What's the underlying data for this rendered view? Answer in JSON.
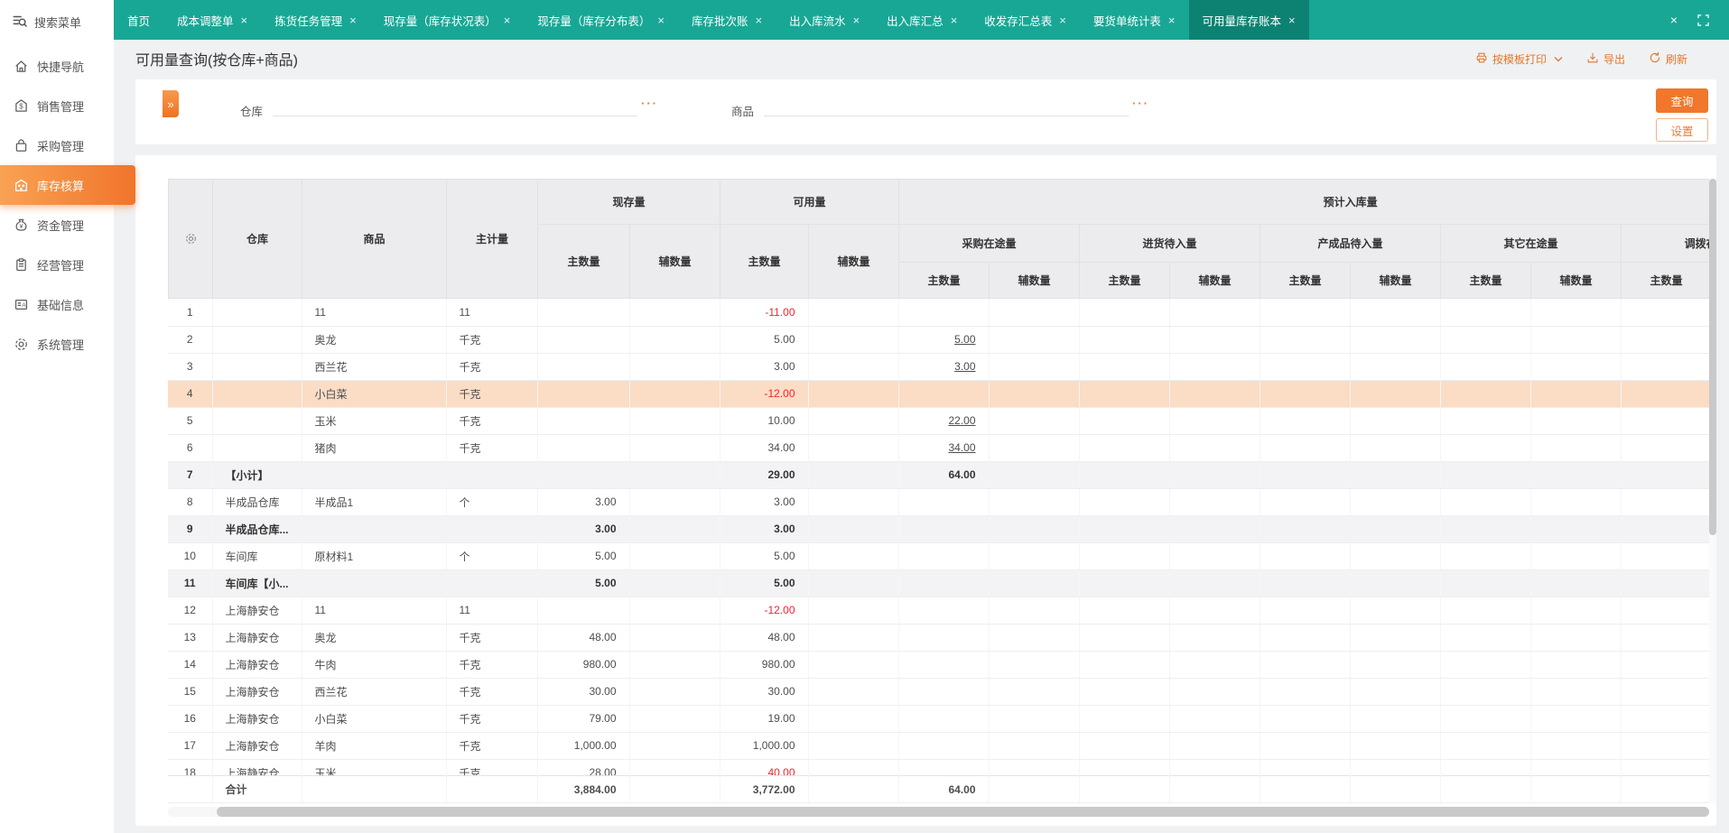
{
  "tabs": {
    "items": [
      {
        "label": "首页",
        "closable": false,
        "active": false
      },
      {
        "label": "成本调整单",
        "closable": true,
        "active": false
      },
      {
        "label": "拣货任务管理",
        "closable": true,
        "active": false
      },
      {
        "label": "现存量（库存状况表）",
        "closable": true,
        "active": false
      },
      {
        "label": "现存量（库存分布表）",
        "closable": true,
        "active": false
      },
      {
        "label": "库存批次账",
        "closable": true,
        "active": false
      },
      {
        "label": "出入库流水",
        "closable": true,
        "active": false
      },
      {
        "label": "出入库汇总",
        "closable": true,
        "active": false
      },
      {
        "label": "收发存汇总表",
        "closable": true,
        "active": false
      },
      {
        "label": "要货单统计表",
        "closable": true,
        "active": false
      },
      {
        "label": "可用量库存账本",
        "closable": true,
        "active": true
      }
    ],
    "close_all_icon": "×",
    "fullscreen_icon": "expand-icon"
  },
  "sidebar": {
    "search": {
      "label": "搜索菜单",
      "icon": "search-menu-icon"
    },
    "items": [
      {
        "label": "快捷导航",
        "icon": "home-icon",
        "active": false
      },
      {
        "label": "销售管理",
        "icon": "sales-house-icon",
        "active": false
      },
      {
        "label": "采购管理",
        "icon": "purchase-bag-icon",
        "active": false
      },
      {
        "label": "库存核算",
        "icon": "warehouse-icon",
        "active": true
      },
      {
        "label": "资金管理",
        "icon": "money-bag-icon",
        "active": false
      },
      {
        "label": "经营管理",
        "icon": "clipboard-icon",
        "active": false
      },
      {
        "label": "基础信息",
        "icon": "id-card-icon",
        "active": false
      },
      {
        "label": "系统管理",
        "icon": "gear-ring-icon",
        "active": false
      }
    ]
  },
  "page": {
    "title": "可用量查询(按仓库+商品)",
    "toolbar": {
      "print": {
        "label": "按模板打印",
        "icon": "printer-icon",
        "dropdown_icon": "chevron-down-icon"
      },
      "export": {
        "label": "导出",
        "icon": "export-icon"
      },
      "refresh": {
        "label": "刷新",
        "icon": "refresh-icon"
      }
    },
    "accent_color": "#f0772b",
    "theme_color": "#18a795"
  },
  "filters": {
    "warehouse_label": "仓库",
    "warehouse_value": "",
    "product_label": "商品",
    "product_value": "",
    "picker_ellipsis": "···",
    "query_button": "查询",
    "settings_button": "设置",
    "collapse_glyph": "»"
  },
  "table": {
    "header": {
      "settings_icon": "gear-icon",
      "col_warehouse": "仓库",
      "col_product": "商品",
      "col_unit": "主计量",
      "group_onhand": "现存量",
      "group_available": "可用量",
      "group_expected": "预计入库量",
      "sub_purchase": "采购在途量",
      "sub_incoming": "进货待入量",
      "sub_finished": "产成品待入量",
      "sub_other": "其它在途量",
      "sub_transfer": "调拨在途量",
      "leaf_main": "主数量",
      "leaf_aux": "辅数量"
    },
    "rows": [
      {
        "num": "1",
        "warehouse": "",
        "product": "11",
        "unit": "11",
        "av_main": "-11.00"
      },
      {
        "num": "2",
        "warehouse": "",
        "product": "奥龙",
        "unit": "千克",
        "av_main": "5.00",
        "pu_main": "5.00",
        "pu_link": true
      },
      {
        "num": "3",
        "warehouse": "",
        "product": "西兰花",
        "unit": "千克",
        "av_main": "3.00",
        "pu_main": "3.00",
        "pu_link": true
      },
      {
        "num": "4",
        "warehouse": "",
        "product": "小白菜",
        "unit": "千克",
        "av_main": "-12.00",
        "highlight": true
      },
      {
        "num": "5",
        "warehouse": "",
        "product": "玉米",
        "unit": "千克",
        "av_main": "10.00",
        "pu_main": "22.00",
        "pu_link": true
      },
      {
        "num": "6",
        "warehouse": "",
        "product": "猪肉",
        "unit": "千克",
        "av_main": "34.00",
        "pu_main": "34.00",
        "pu_link": true
      },
      {
        "num": "7",
        "warehouse": "【小计】",
        "av_main": "29.00",
        "pu_main": "64.00",
        "subtotal": true
      },
      {
        "num": "8",
        "warehouse": "半成品仓库",
        "product": "半成品1",
        "unit": "个",
        "oh_main": "3.00",
        "av_main": "3.00"
      },
      {
        "num": "9",
        "warehouse": "半成品仓库...",
        "oh_main": "3.00",
        "av_main": "3.00",
        "subtotal": true
      },
      {
        "num": "10",
        "warehouse": "车间库",
        "product": "原材料1",
        "unit": "个",
        "oh_main": "5.00",
        "av_main": "5.00"
      },
      {
        "num": "11",
        "warehouse": "车间库【小...",
        "oh_main": "5.00",
        "av_main": "5.00",
        "subtotal": true
      },
      {
        "num": "12",
        "warehouse": "上海静安仓",
        "product": "11",
        "unit": "11",
        "av_main": "-12.00"
      },
      {
        "num": "13",
        "warehouse": "上海静安仓",
        "product": "奥龙",
        "unit": "千克",
        "oh_main": "48.00",
        "av_main": "48.00"
      },
      {
        "num": "14",
        "warehouse": "上海静安仓",
        "product": "牛肉",
        "unit": "千克",
        "oh_main": "980.00",
        "av_main": "980.00"
      },
      {
        "num": "15",
        "warehouse": "上海静安仓",
        "product": "西兰花",
        "unit": "千克",
        "oh_main": "30.00",
        "av_main": "30.00"
      },
      {
        "num": "16",
        "warehouse": "上海静安仓",
        "product": "小白菜",
        "unit": "千克",
        "oh_main": "79.00",
        "av_main": "19.00"
      },
      {
        "num": "17",
        "warehouse": "上海静安仓",
        "product": "羊肉",
        "unit": "千克",
        "oh_main": "1,000.00",
        "av_main": "1,000.00"
      },
      {
        "num": "18",
        "warehouse": "上海静安仓",
        "product": "玉米",
        "unit": "千克",
        "oh_main": "28.00",
        "av_main": "40.00",
        "av_red": true
      }
    ],
    "total": {
      "label": "合计",
      "oh_main": "3,884.00",
      "av_main": "3,772.00",
      "pu_main": "64.00"
    }
  }
}
